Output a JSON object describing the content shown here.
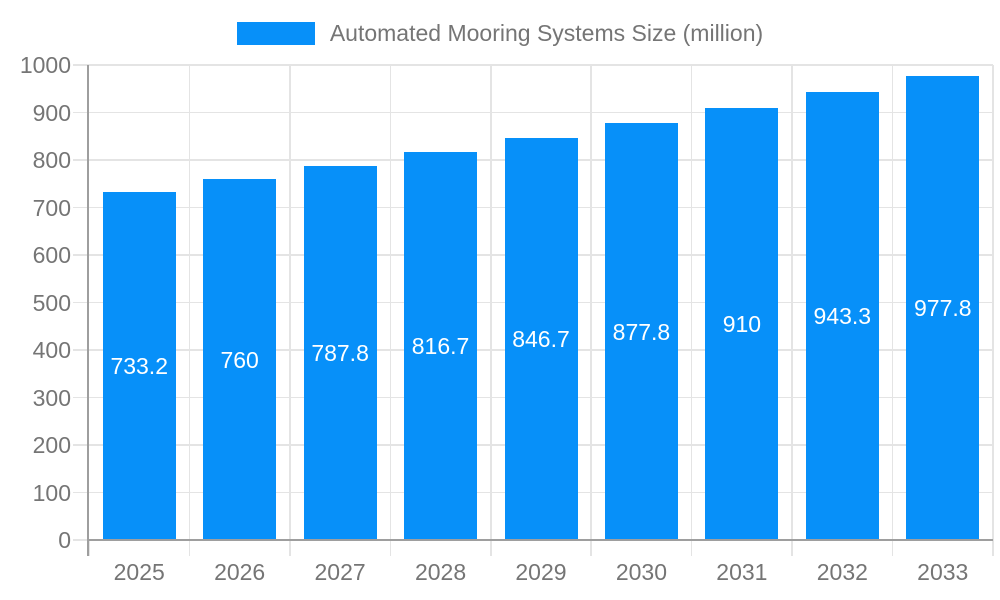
{
  "chart_data": {
    "type": "bar",
    "title": "Automated Mooring Systems Size (million)",
    "categories": [
      "2025",
      "2026",
      "2027",
      "2028",
      "2029",
      "2030",
      "2031",
      "2032",
      "2033"
    ],
    "values": [
      733.2,
      760,
      787.8,
      816.7,
      846.7,
      877.8,
      910,
      943.3,
      977.8
    ],
    "value_labels": [
      "733.2",
      "760",
      "787.8",
      "816.7",
      "846.7",
      "877.8",
      "910",
      "943.3",
      "977.8"
    ],
    "xlabel": "",
    "ylabel": "",
    "ylim": [
      0,
      1000
    ],
    "ytick_step": 100,
    "grid": true,
    "legend_position": "top",
    "value_label_position": "inside-middle",
    "colors": {
      "bar": "#0790f9",
      "grid": "#e4e4e4",
      "axis": "#9e9e9e",
      "axis_text": "#757575",
      "value_label_text": "#ffffff",
      "background": "#ffffff"
    }
  }
}
